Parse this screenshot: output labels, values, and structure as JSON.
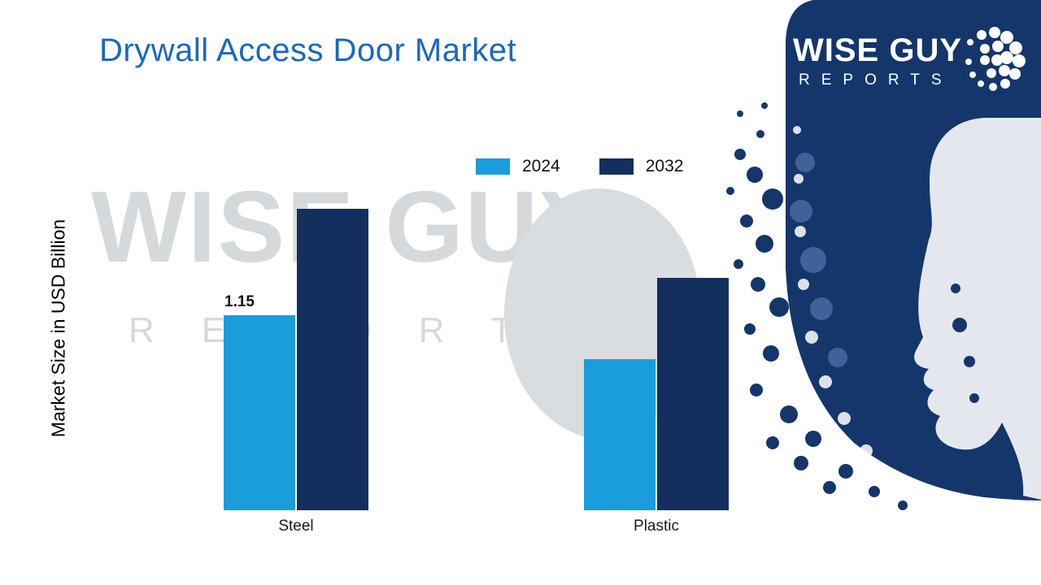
{
  "page": {
    "background": "#ffffff",
    "accent_color": "#1b67c1"
  },
  "brand": {
    "wordmark": "WISE GUY",
    "subtext": "REPORTS",
    "navy": "#14366b",
    "dot_light": "#3f6398",
    "face_light": "#e4e8ee",
    "text_color": "#ffffff"
  },
  "watermark": {
    "wordmark": "WISE GUY",
    "subtext": "REPORTS",
    "color": "#d6d9db"
  },
  "chart_data": {
    "type": "bar",
    "title": "Drywall Access Door Market",
    "xlabel": "",
    "ylabel": "Market Size in USD Billion",
    "categories": [
      "Steel",
      "Plastic"
    ],
    "series": [
      {
        "name": "2024",
        "color": "#1a9ddb",
        "values": [
          1.15,
          0.89
        ]
      },
      {
        "name": "2032",
        "color": "#132f5e",
        "values": [
          1.78,
          1.37
        ]
      }
    ],
    "ylim": [
      0,
      2
    ],
    "grid": false,
    "legend_position": "top",
    "annotations": [
      {
        "category": "Steel",
        "series": "2024",
        "text": "1.15"
      }
    ]
  }
}
